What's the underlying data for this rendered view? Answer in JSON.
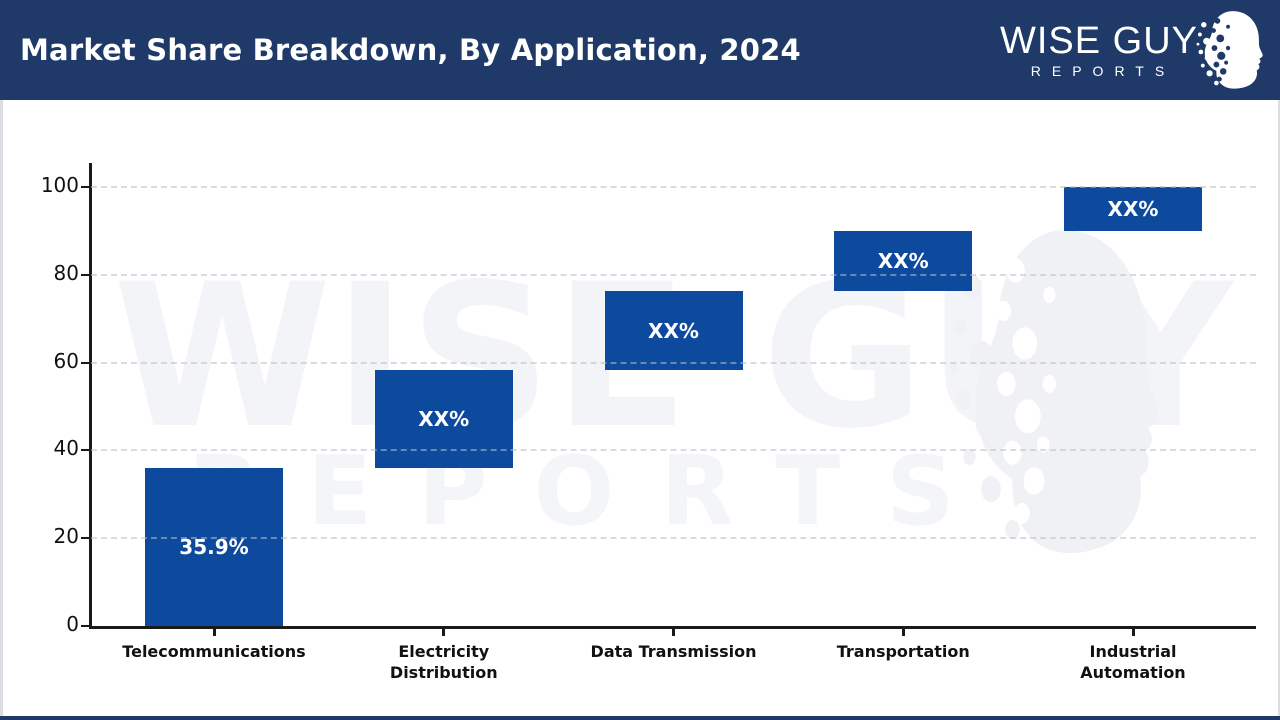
{
  "header": {
    "title": "Market Share Breakdown, By Application, 2024",
    "logo": {
      "line1": "WISE GUY",
      "line2": "REPORTS"
    }
  },
  "watermark": {
    "line1": "WISE GUY",
    "line2": "REPORTS"
  },
  "colors": {
    "header_bg": "#1f3a68",
    "bar": "#0d4a9e",
    "bar_label": "#ffffff",
    "axis": "#1a1a1a",
    "gridline": "#e2e2e8",
    "watermark": "#f3f4f7"
  },
  "chart_data": {
    "type": "bar",
    "subtype": "waterfall",
    "title": "Market Share Breakdown, By Application, 2024",
    "xlabel": "",
    "ylabel": "",
    "ylim": [
      0,
      105
    ],
    "yticks": [
      0,
      20,
      40,
      60,
      80,
      100
    ],
    "grid": "horizontal-dashed",
    "legend": "none",
    "bar_color": "#0d4a9e",
    "categories": [
      "Telecommunications",
      "Electricity Distribution",
      "Data Transmission",
      "Transportation",
      "Industrial Automation"
    ],
    "bars": [
      {
        "category": "Telecommunications",
        "category_lines": [
          "Telecommunications"
        ],
        "start": 0,
        "end": 35.9,
        "label": "35.9%"
      },
      {
        "category": "Electricity Distribution",
        "category_lines": [
          "Electricity",
          "Distribution"
        ],
        "start": 35.9,
        "end": 58.3,
        "label": "XX%"
      },
      {
        "category": "Data Transmission",
        "category_lines": [
          "Data Transmission"
        ],
        "start": 58.3,
        "end": 76.3,
        "label": "XX%"
      },
      {
        "category": "Transportation",
        "category_lines": [
          "Transportation"
        ],
        "start": 76.3,
        "end": 90.0,
        "label": "XX%"
      },
      {
        "category": "Industrial Automation",
        "category_lines": [
          "Industrial",
          "Automation"
        ],
        "start": 90.0,
        "end": 100.0,
        "label": "XX%"
      }
    ]
  }
}
